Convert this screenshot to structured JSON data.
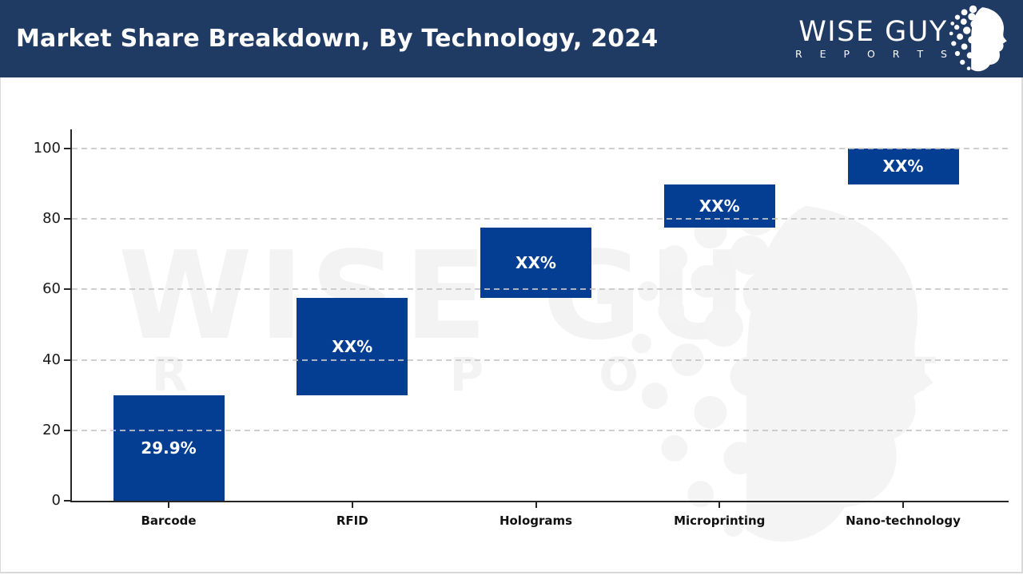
{
  "header": {
    "title": "Market Share Breakdown, By Technology, 2024",
    "bg_color": "#1f3a63",
    "logo": {
      "line1": "WISE GUY",
      "line2": "R E P O R T S"
    }
  },
  "watermark": {
    "line1": "WISE GUY",
    "line2": "R E P O R T S"
  },
  "chart_data": {
    "type": "bar",
    "subtype": "floating-waterfall",
    "title": "Market Share Breakdown, By Technology, 2024",
    "categories": [
      "Barcode",
      "RFID",
      "Holograms",
      "Microprinting",
      "Nano-technology"
    ],
    "segments": [
      {
        "category": "Barcode",
        "start": 0,
        "end": 29.9,
        "label": "29.9%"
      },
      {
        "category": "RFID",
        "start": 29.9,
        "end": 57.5,
        "label": "XX%"
      },
      {
        "category": "Holograms",
        "start": 57.5,
        "end": 77.5,
        "label": "XX%"
      },
      {
        "category": "Microprinting",
        "start": 77.5,
        "end": 89.8,
        "label": "XX%"
      },
      {
        "category": "Nano-technology",
        "start": 89.8,
        "end": 100,
        "label": "XX%"
      }
    ],
    "yticks": [
      0,
      20,
      40,
      60,
      80,
      100
    ],
    "ylim": [
      0,
      105
    ],
    "xlabel": "",
    "ylabel": "",
    "grid": "horizontal-dashed",
    "legend": "none",
    "bar_color": "#043e92",
    "bar_label_color": "#ffffff",
    "axis_color": "#262626",
    "grid_color": "#d8d8d8"
  }
}
